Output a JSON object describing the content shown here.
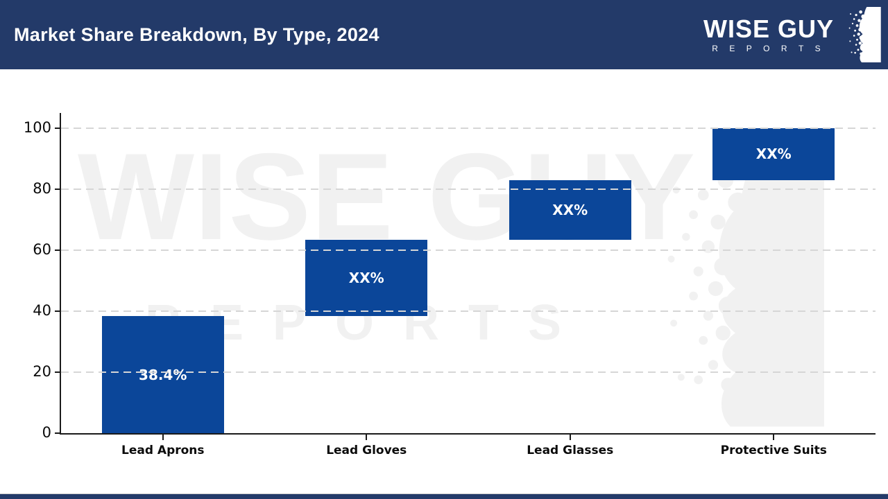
{
  "header": {
    "title": "Market Share Breakdown, By Type, 2024",
    "logo": {
      "line1": "WISE GUY",
      "line2": "REPORTS"
    }
  },
  "watermark": {
    "line1": "WISE GUY",
    "line2": "REPORTS"
  },
  "chart_data": {
    "type": "bar",
    "subtype": "waterfall",
    "title": "Market Share Breakdown, By Type, 2024",
    "categories": [
      "Lead Aprons",
      "Lead Gloves",
      "Lead Glasses",
      "Protective Suits"
    ],
    "bars": [
      {
        "category": "Lead Aprons",
        "start": 0,
        "end": 38.4,
        "label": "38.4%"
      },
      {
        "category": "Lead Gloves",
        "start": 38.4,
        "end": 63.5,
        "label": "XX%"
      },
      {
        "category": "Lead Glasses",
        "start": 63.5,
        "end": 83.0,
        "label": "XX%"
      },
      {
        "category": "Protective Suits",
        "start": 83.0,
        "end": 100,
        "label": "XX%"
      }
    ],
    "xlabel": "",
    "ylabel": "",
    "yticks": [
      0,
      20,
      40,
      60,
      80,
      100
    ],
    "ylim": [
      0,
      105
    ],
    "grid": "horizontal-dashed",
    "legend": "none",
    "bar_color": "#0b4699",
    "bar_label_color": "#ffffff"
  },
  "colors": {
    "header_bg": "#233a69",
    "footer_bg": "#233a69",
    "bar": "#0b4699",
    "gridline": "#d6d6d6",
    "axis": "#1a1a1a",
    "watermark": "#f1f1f1",
    "title_text": "#ffffff"
  }
}
